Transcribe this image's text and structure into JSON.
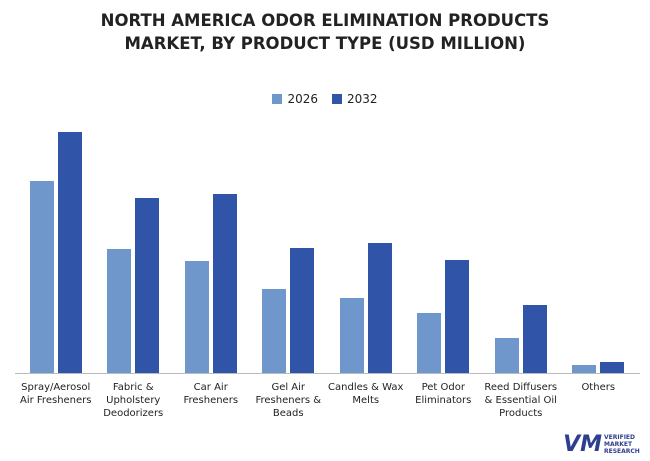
{
  "chart_data": {
    "type": "bar",
    "title": "NORTH AMERICA ODOR ELIMINATION PRODUCTS MARKET, BY PRODUCT TYPE (USD MILLION)",
    "categories": [
      "Spray/Aerosol Air Fresheners",
      "Fabric & Upholstery Deodorizers",
      "Car Air Fresheners",
      "Gel Air Fresheners & Beads",
      "Candles & Wax Melts",
      "Pet Odor Eliminators",
      "Reed Diffusers & Essential Oil Products",
      "Others"
    ],
    "series": [
      {
        "name": "2026",
        "color": "#7097cc",
        "values": [
          190,
          123,
          111,
          83,
          74,
          59,
          35,
          8
        ]
      },
      {
        "name": "2032",
        "color": "#2f54a8",
        "values": [
          238,
          173,
          177,
          124,
          128,
          112,
          67,
          11
        ]
      }
    ],
    "ylim": [
      0,
      250
    ],
    "watermark": "VERIFIED MARKET RESEARCH"
  }
}
